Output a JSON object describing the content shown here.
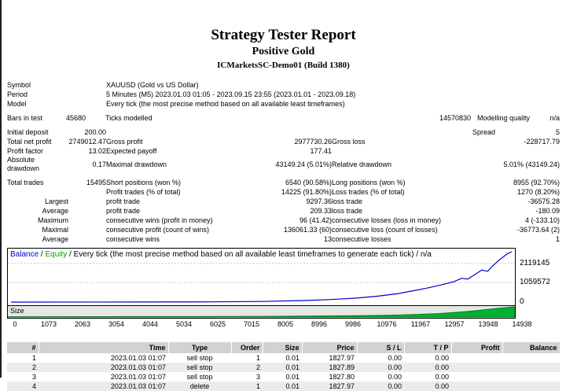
{
  "header": {
    "title": "Strategy Tester Report",
    "subtitle": "Positive Gold",
    "server": "ICMarketsSC-Demo01 (Build 1380)"
  },
  "summary": {
    "rows": [
      {
        "type": "info",
        "cells": [
          "Symbol",
          "XAUUSD (Gold vs US Dollar)"
        ]
      },
      {
        "type": "info",
        "cells": [
          "Period",
          "5 Minutes (M5) 2023.01.03 01:05 - 2023.09.15 23:55 (2023.01.01 - 2023.09.18)"
        ]
      },
      {
        "type": "info",
        "cells": [
          "Model",
          "Every tick (the most precise method based on all available least timeframes)"
        ]
      },
      {
        "type": "gap"
      },
      {
        "type": "bars",
        "cells": [
          "Bars in test",
          "45680",
          "Ticks modelled",
          "14570830",
          "Modelling quality",
          "n/a"
        ]
      },
      {
        "type": "gap"
      },
      {
        "type": "spread",
        "cells": [
          "Initial deposit",
          "200.00",
          "Spread",
          "5"
        ]
      },
      {
        "type": "six",
        "cells": [
          "Total net profit",
          "2749012.47",
          "Gross profit",
          "2977730.26",
          "Gross loss",
          "-228717.79"
        ]
      },
      {
        "type": "six",
        "cells": [
          "Profit factor",
          "13.02",
          "Expected payoff",
          "177.41",
          "",
          ""
        ]
      },
      {
        "type": "six",
        "cells": [
          "Absolute drawdown",
          "0.17",
          "Maximal drawdown",
          "43149.24 (5.01%)",
          "Relative drawdown",
          "5.01% (43149.24)"
        ]
      },
      {
        "type": "gap"
      },
      {
        "type": "six",
        "cells": [
          "Total trades",
          "15495",
          "Short positions (won %)",
          "6540 (90.58%)",
          "Long positions (won %)",
          "8955 (92.70%)"
        ]
      },
      {
        "type": "six",
        "cells": [
          "",
          "",
          "Profit trades (% of total)",
          "14225 (91.80%)",
          "Loss trades (% of total)",
          "1270 (8.20%)"
        ]
      },
      {
        "type": "six r1",
        "cells": [
          "Largest",
          "",
          "profit trade",
          "9297.36",
          "loss trade",
          "-36575.28"
        ]
      },
      {
        "type": "six r1",
        "cells": [
          "Average",
          "",
          "profit trade",
          "209.33",
          "loss trade",
          "-180.09"
        ]
      },
      {
        "type": "six r1",
        "cells": [
          "Maximum",
          "",
          "consecutive wins (profit in money)",
          "96 (41.42)",
          "consecutive losses (loss in money)",
          "4 (-133.10)"
        ]
      },
      {
        "type": "six r1",
        "cells": [
          "Maximal",
          "",
          "consecutive profit (count of wins)",
          "136061.33 (60)",
          "consecutive loss (count of losses)",
          "-36773.64 (2)"
        ]
      },
      {
        "type": "six r1",
        "cells": [
          "Average",
          "",
          "consecutive wins",
          "13",
          "consecutive losses",
          "1"
        ]
      }
    ]
  },
  "chart_data": {
    "type": "line",
    "caption": {
      "balance": "Balance",
      "sep": " / ",
      "equity": "Equity",
      "rest": " / Every tick (the most precise method based on all available least timeframes to generate each tick) / n/a"
    },
    "size_label": "Size",
    "y_ticks": [
      "2119145",
      "1059572",
      "0"
    ],
    "x_ticks": [
      "0",
      "1073",
      "2063",
      "3054",
      "4044",
      "5034",
      "6025",
      "7015",
      "8005",
      "8996",
      "9986",
      "10976",
      "11967",
      "12957",
      "13948",
      "14938"
    ],
    "max_value": 2750000,
    "colors": {
      "balance": "#0000C8",
      "equity": "#00A000",
      "grid": "#C8C8C8",
      "size_fill": "#00B232",
      "size_stroke": "#007A1F"
    },
    "series": [
      {
        "name": "Balance",
        "points": [
          [
            0.0,
            200
          ],
          [
            0.25,
            3000
          ],
          [
            0.4,
            12000
          ],
          [
            0.5,
            35000
          ],
          [
            0.58,
            80000
          ],
          [
            0.64,
            140000
          ],
          [
            0.69,
            220000
          ],
          [
            0.73,
            320000
          ],
          [
            0.77,
            450000
          ],
          [
            0.8,
            600000
          ],
          [
            0.83,
            760000
          ],
          [
            0.86,
            950000
          ],
          [
            0.885,
            1120000
          ],
          [
            0.9,
            1300000
          ],
          [
            0.912,
            1260000
          ],
          [
            0.925,
            1480000
          ],
          [
            0.94,
            1750000
          ],
          [
            0.952,
            1680000
          ],
          [
            0.962,
            1980000
          ],
          [
            0.972,
            2230000
          ],
          [
            0.982,
            2450000
          ],
          [
            0.992,
            2650000
          ],
          [
            1.0,
            2749012
          ]
        ]
      },
      {
        "name": "Size",
        "points": [
          [
            0,
            0.03
          ],
          [
            0.3,
            0.045
          ],
          [
            0.5,
            0.065
          ],
          [
            0.6,
            0.09
          ],
          [
            0.68,
            0.12
          ],
          [
            0.75,
            0.17
          ],
          [
            0.8,
            0.24
          ],
          [
            0.85,
            0.34
          ],
          [
            0.88,
            0.44
          ],
          [
            0.91,
            0.56
          ],
          [
            0.94,
            0.71
          ],
          [
            0.97,
            0.87
          ],
          [
            1,
            1
          ]
        ]
      }
    ]
  },
  "trades": {
    "columns": [
      "#",
      "Time",
      "Type",
      "Order",
      "Size",
      "Price",
      "S / L",
      "T / P",
      "Profit",
      "Balance"
    ],
    "rows": [
      [
        "1",
        "2023.01.03 01:07",
        "sell stop",
        "1",
        "0.01",
        "1827.97",
        "0.00",
        "0.00",
        "",
        ""
      ],
      [
        "2",
        "2023.01.03 01:07",
        "sell stop",
        "2",
        "0.01",
        "1827.89",
        "0.00",
        "0.00",
        "",
        ""
      ],
      [
        "3",
        "2023.01.03 01:07",
        "sell stop",
        "3",
        "0.01",
        "1827.80",
        "0.00",
        "0.00",
        "",
        ""
      ],
      [
        "4",
        "2023.01.03 01:07",
        "delete",
        "1",
        "0.01",
        "1827.97",
        "0.00",
        "0.00",
        "",
        ""
      ]
    ]
  }
}
